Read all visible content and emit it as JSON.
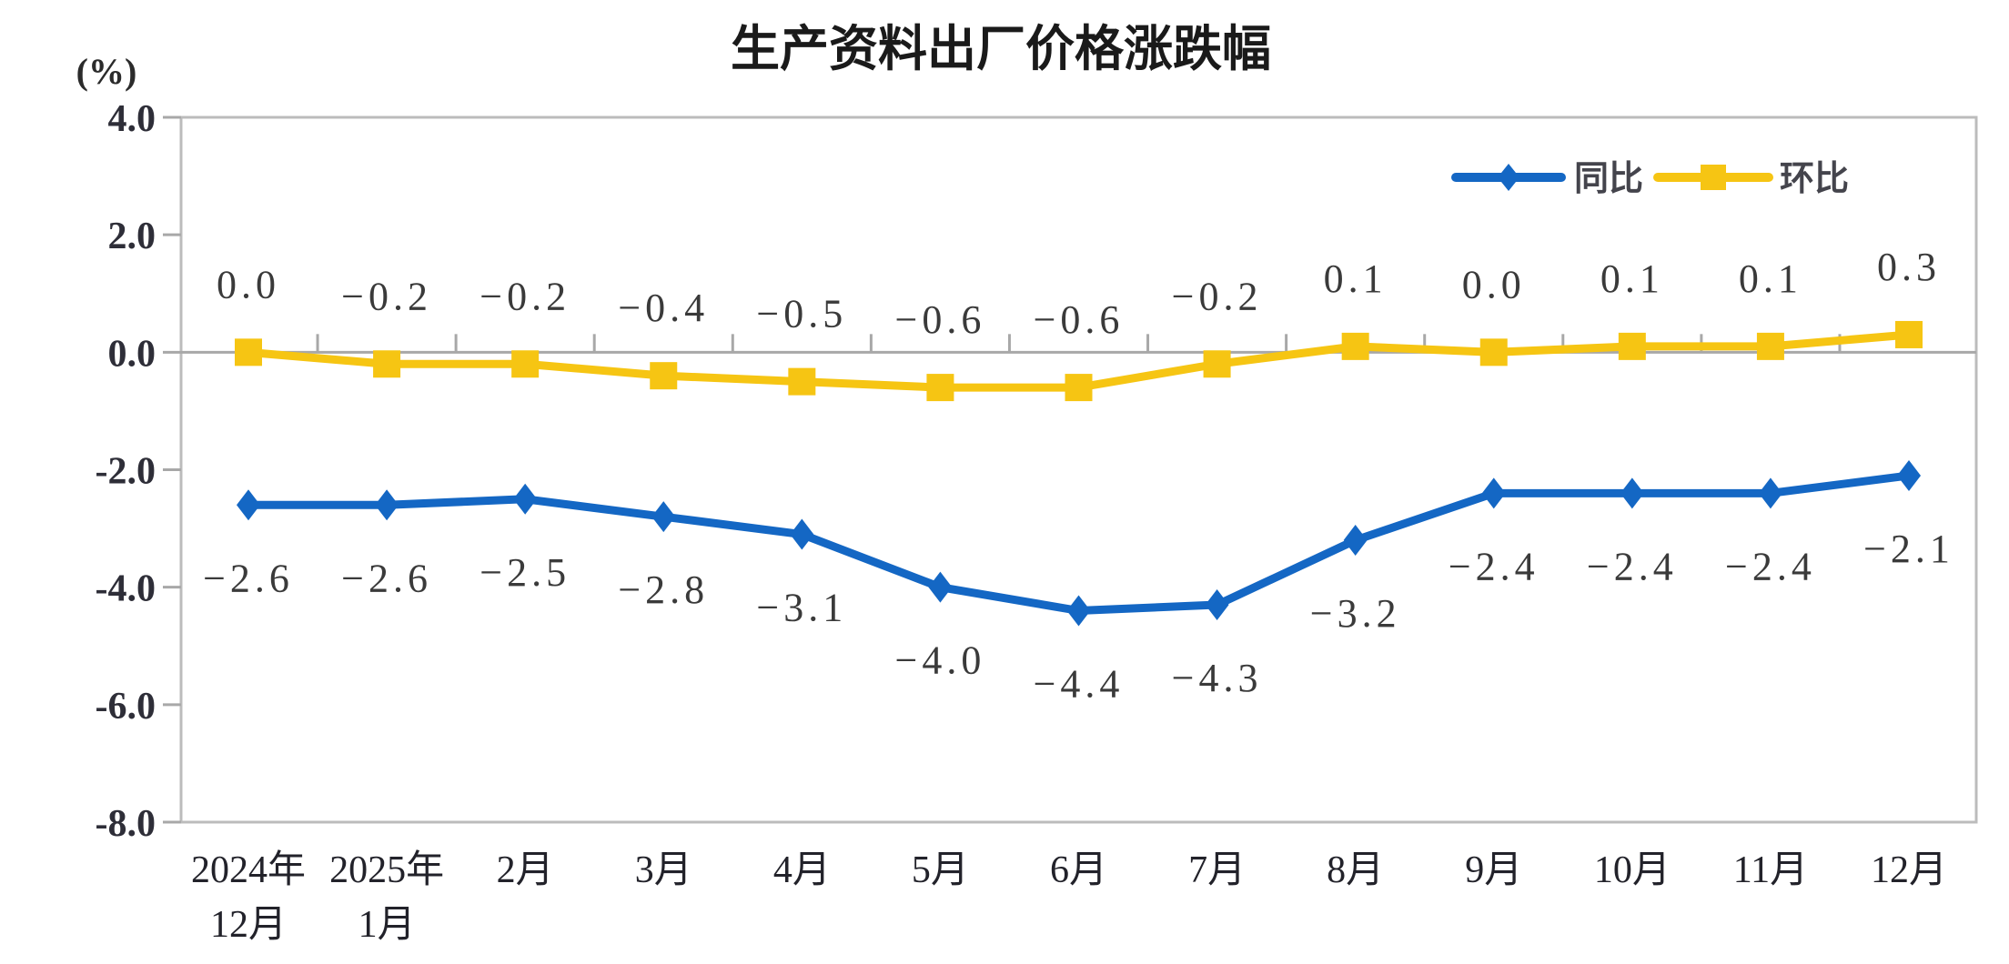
{
  "chart_data": {
    "type": "line",
    "title": "生产资料出厂价格涨跌幅",
    "unit_label": "(%)",
    "x_labels": [
      [
        "2024年",
        "12月"
      ],
      [
        "2025年",
        "1月"
      ],
      [
        "2月"
      ],
      [
        "3月"
      ],
      [
        "4月"
      ],
      [
        "5月"
      ],
      [
        "6月"
      ],
      [
        "7月"
      ],
      [
        "8月"
      ],
      [
        "9月"
      ],
      [
        "10月"
      ],
      [
        "11月"
      ],
      [
        "12月"
      ]
    ],
    "series": [
      {
        "key": "yoy",
        "name": "同比",
        "color": "#1467C4",
        "marker": "diamond",
        "label_side": "below",
        "values": [
          -2.6,
          -2.6,
          -2.5,
          -2.8,
          -3.1,
          -4.0,
          -4.4,
          -4.3,
          -3.2,
          -2.4,
          -2.4,
          -2.4,
          -2.1
        ],
        "labels": [
          "−2.6",
          "−2.6",
          "−2.5",
          "−2.8",
          "−3.1",
          "−4.0",
          "−4.4",
          "−4.3",
          "−3.2",
          "−2.4",
          "−2.4",
          "−2.4",
          "−2.1"
        ]
      },
      {
        "key": "mom",
        "name": "环比",
        "color": "#F6C513",
        "marker": "square",
        "label_side": "above",
        "values": [
          0.0,
          -0.2,
          -0.2,
          -0.4,
          -0.5,
          -0.6,
          -0.6,
          -0.2,
          0.1,
          0.0,
          0.1,
          0.1,
          0.3
        ],
        "labels": [
          "0.0",
          "−0.2",
          "−0.2",
          "−0.4",
          "−0.5",
          "−0.6",
          "−0.6",
          "−0.2",
          "0.1",
          "0.0",
          "0.1",
          "0.1",
          "0.3"
        ]
      }
    ],
    "y_axis": {
      "min": -8.0,
      "max": 4.0,
      "ticks": [
        "4.0",
        "2.0",
        "0.0",
        "-2.0",
        "-4.0",
        "-6.0",
        "-8.0"
      ]
    },
    "legend": {
      "position": "top-right",
      "entries": [
        "同比",
        "环比"
      ]
    },
    "grid": false,
    "colors": {
      "frame": "#BCBCBC",
      "zero_line": "#A8A8A8",
      "tick": "#A8A8A8"
    }
  }
}
